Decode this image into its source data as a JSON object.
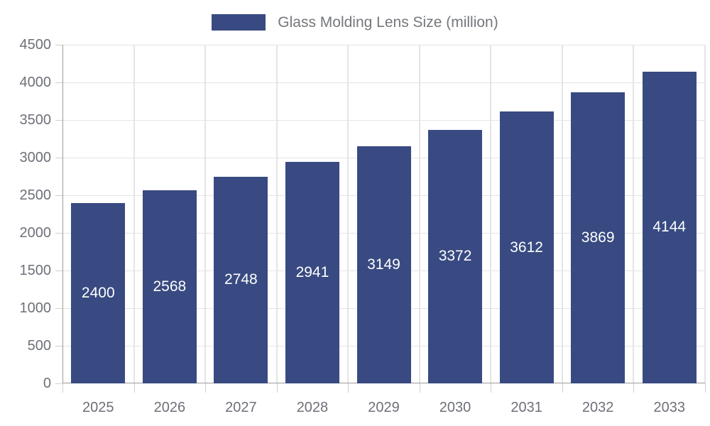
{
  "legend": {
    "label": "Glass Molding Lens Size (million)"
  },
  "colors": {
    "bar": "#384A81",
    "grid": "#e4e4e4",
    "axis": "#9b9b9b",
    "tick": "#cfcfcf",
    "axis_text": "#6e7079",
    "legend_text": "#74777c",
    "bar_label_text": "#ffffff"
  },
  "chart_data": {
    "type": "bar",
    "title": "Glass Molding Lens Size (million)",
    "categories": [
      "2025",
      "2026",
      "2027",
      "2028",
      "2029",
      "2030",
      "2031",
      "2032",
      "2033"
    ],
    "values": [
      2400,
      2568,
      2748,
      2941,
      3149,
      3372,
      3612,
      3869,
      4144
    ],
    "xlabel": "",
    "ylabel": "",
    "ylim": [
      0,
      4500
    ],
    "yticks": [
      0,
      500,
      1000,
      1500,
      2000,
      2500,
      3000,
      3500,
      4000,
      4500
    ],
    "grid": true,
    "legend_position": "top-center",
    "bar_label_position": "inside-center"
  }
}
